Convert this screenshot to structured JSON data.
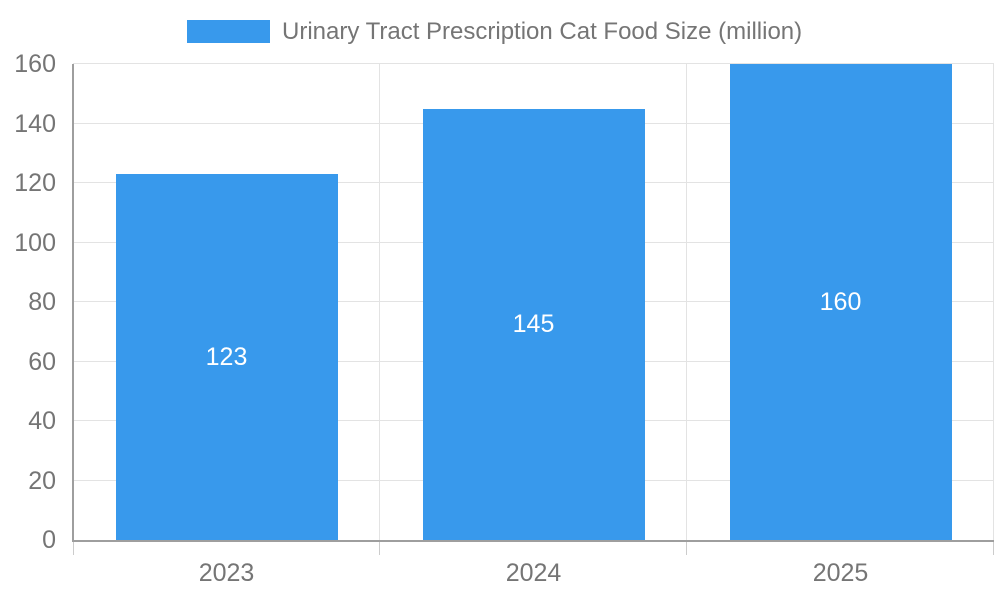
{
  "chart_data": {
    "type": "bar",
    "title": "Urinary Tract Prescription Cat Food Size (million)",
    "categories": [
      "2023",
      "2024",
      "2025"
    ],
    "values": [
      123,
      145,
      160
    ],
    "xlabel": "",
    "ylabel": "",
    "ylim": [
      0,
      160
    ],
    "ytick_step": 20,
    "ytick_labels": [
      "0",
      "20",
      "40",
      "60",
      "80",
      "100",
      "120",
      "140",
      "160"
    ],
    "grid": true,
    "legend_position": "top-center",
    "bar_labels_inside": true
  },
  "colors": {
    "bar_fill": "#3899EC",
    "bar_value_text": "#ffffff",
    "axis_text": "#757575",
    "legend_text": "#757575",
    "gridline": "#e3e3e3",
    "axis_line": "#9e9e9e",
    "tick_mark": "#cccccc",
    "background": "#ffffff"
  }
}
